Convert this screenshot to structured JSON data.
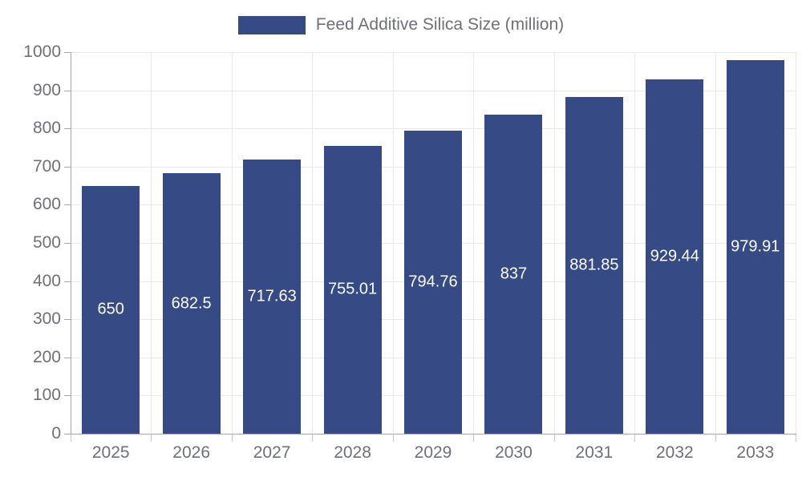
{
  "chart_data": {
    "type": "bar",
    "title": "Feed Additive Silica Size (million)",
    "legend": {
      "label": "Feed Additive Silica Size (million)",
      "position": "top"
    },
    "categories": [
      "2025",
      "2026",
      "2027",
      "2028",
      "2029",
      "2030",
      "2031",
      "2032",
      "2033"
    ],
    "series": [
      {
        "name": "Feed Additive Silica Size (million)",
        "values": [
          650,
          682.5,
          717.63,
          755.01,
          794.76,
          837,
          881.85,
          929.44,
          979.91
        ],
        "labels": [
          "650",
          "682.5",
          "717.63",
          "755.01",
          "794.76",
          "837",
          "881.85",
          "929.44",
          "979.91"
        ]
      }
    ],
    "xlabel": "",
    "ylabel": "",
    "ylim": [
      0,
      1000
    ],
    "y_tick_interval": 100,
    "y_tick_labels": [
      "0",
      "100",
      "200",
      "300",
      "400",
      "500",
      "600",
      "700",
      "800",
      "900",
      "1000"
    ],
    "grid": true,
    "legend_position": "top",
    "colors": {
      "bar": "#364b85",
      "value_label": "#ffffff",
      "axis_text": "#6e7079",
      "axis_line": "#a7a7a7",
      "gridline": "#e9e9e9",
      "tick": "#c6c6c6",
      "background": "#ffffff"
    }
  }
}
